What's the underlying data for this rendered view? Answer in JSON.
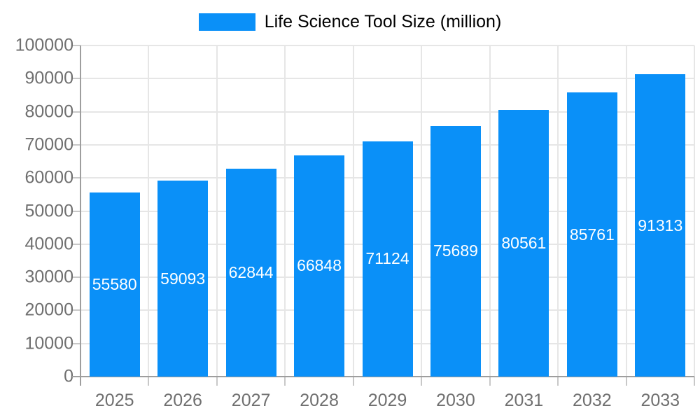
{
  "chart_data": {
    "type": "bar",
    "title": "",
    "legend": "Life Science Tool Size (million)",
    "legend_position": "top",
    "categories": [
      "2025",
      "2026",
      "2027",
      "2028",
      "2029",
      "2030",
      "2031",
      "2032",
      "2033"
    ],
    "values": [
      55580,
      59093,
      62844,
      66848,
      71124,
      75689,
      80561,
      85761,
      91313
    ],
    "xlabel": "",
    "ylabel": "",
    "ylim": [
      0,
      100000
    ],
    "ytick_step": 10000,
    "y_ticks": [
      "0",
      "10000",
      "20000",
      "30000",
      "40000",
      "50000",
      "60000",
      "70000",
      "80000",
      "90000",
      "100000"
    ],
    "grid": true,
    "colors": {
      "bar": "#0a90f8",
      "bar_label_text": "#ffffff",
      "axis_text": "#6f6f6f",
      "axis_line": "#9e9e9e",
      "gridline": "#e6e6e6",
      "tick": "#c8c8c8",
      "background": "#ffffff"
    }
  }
}
